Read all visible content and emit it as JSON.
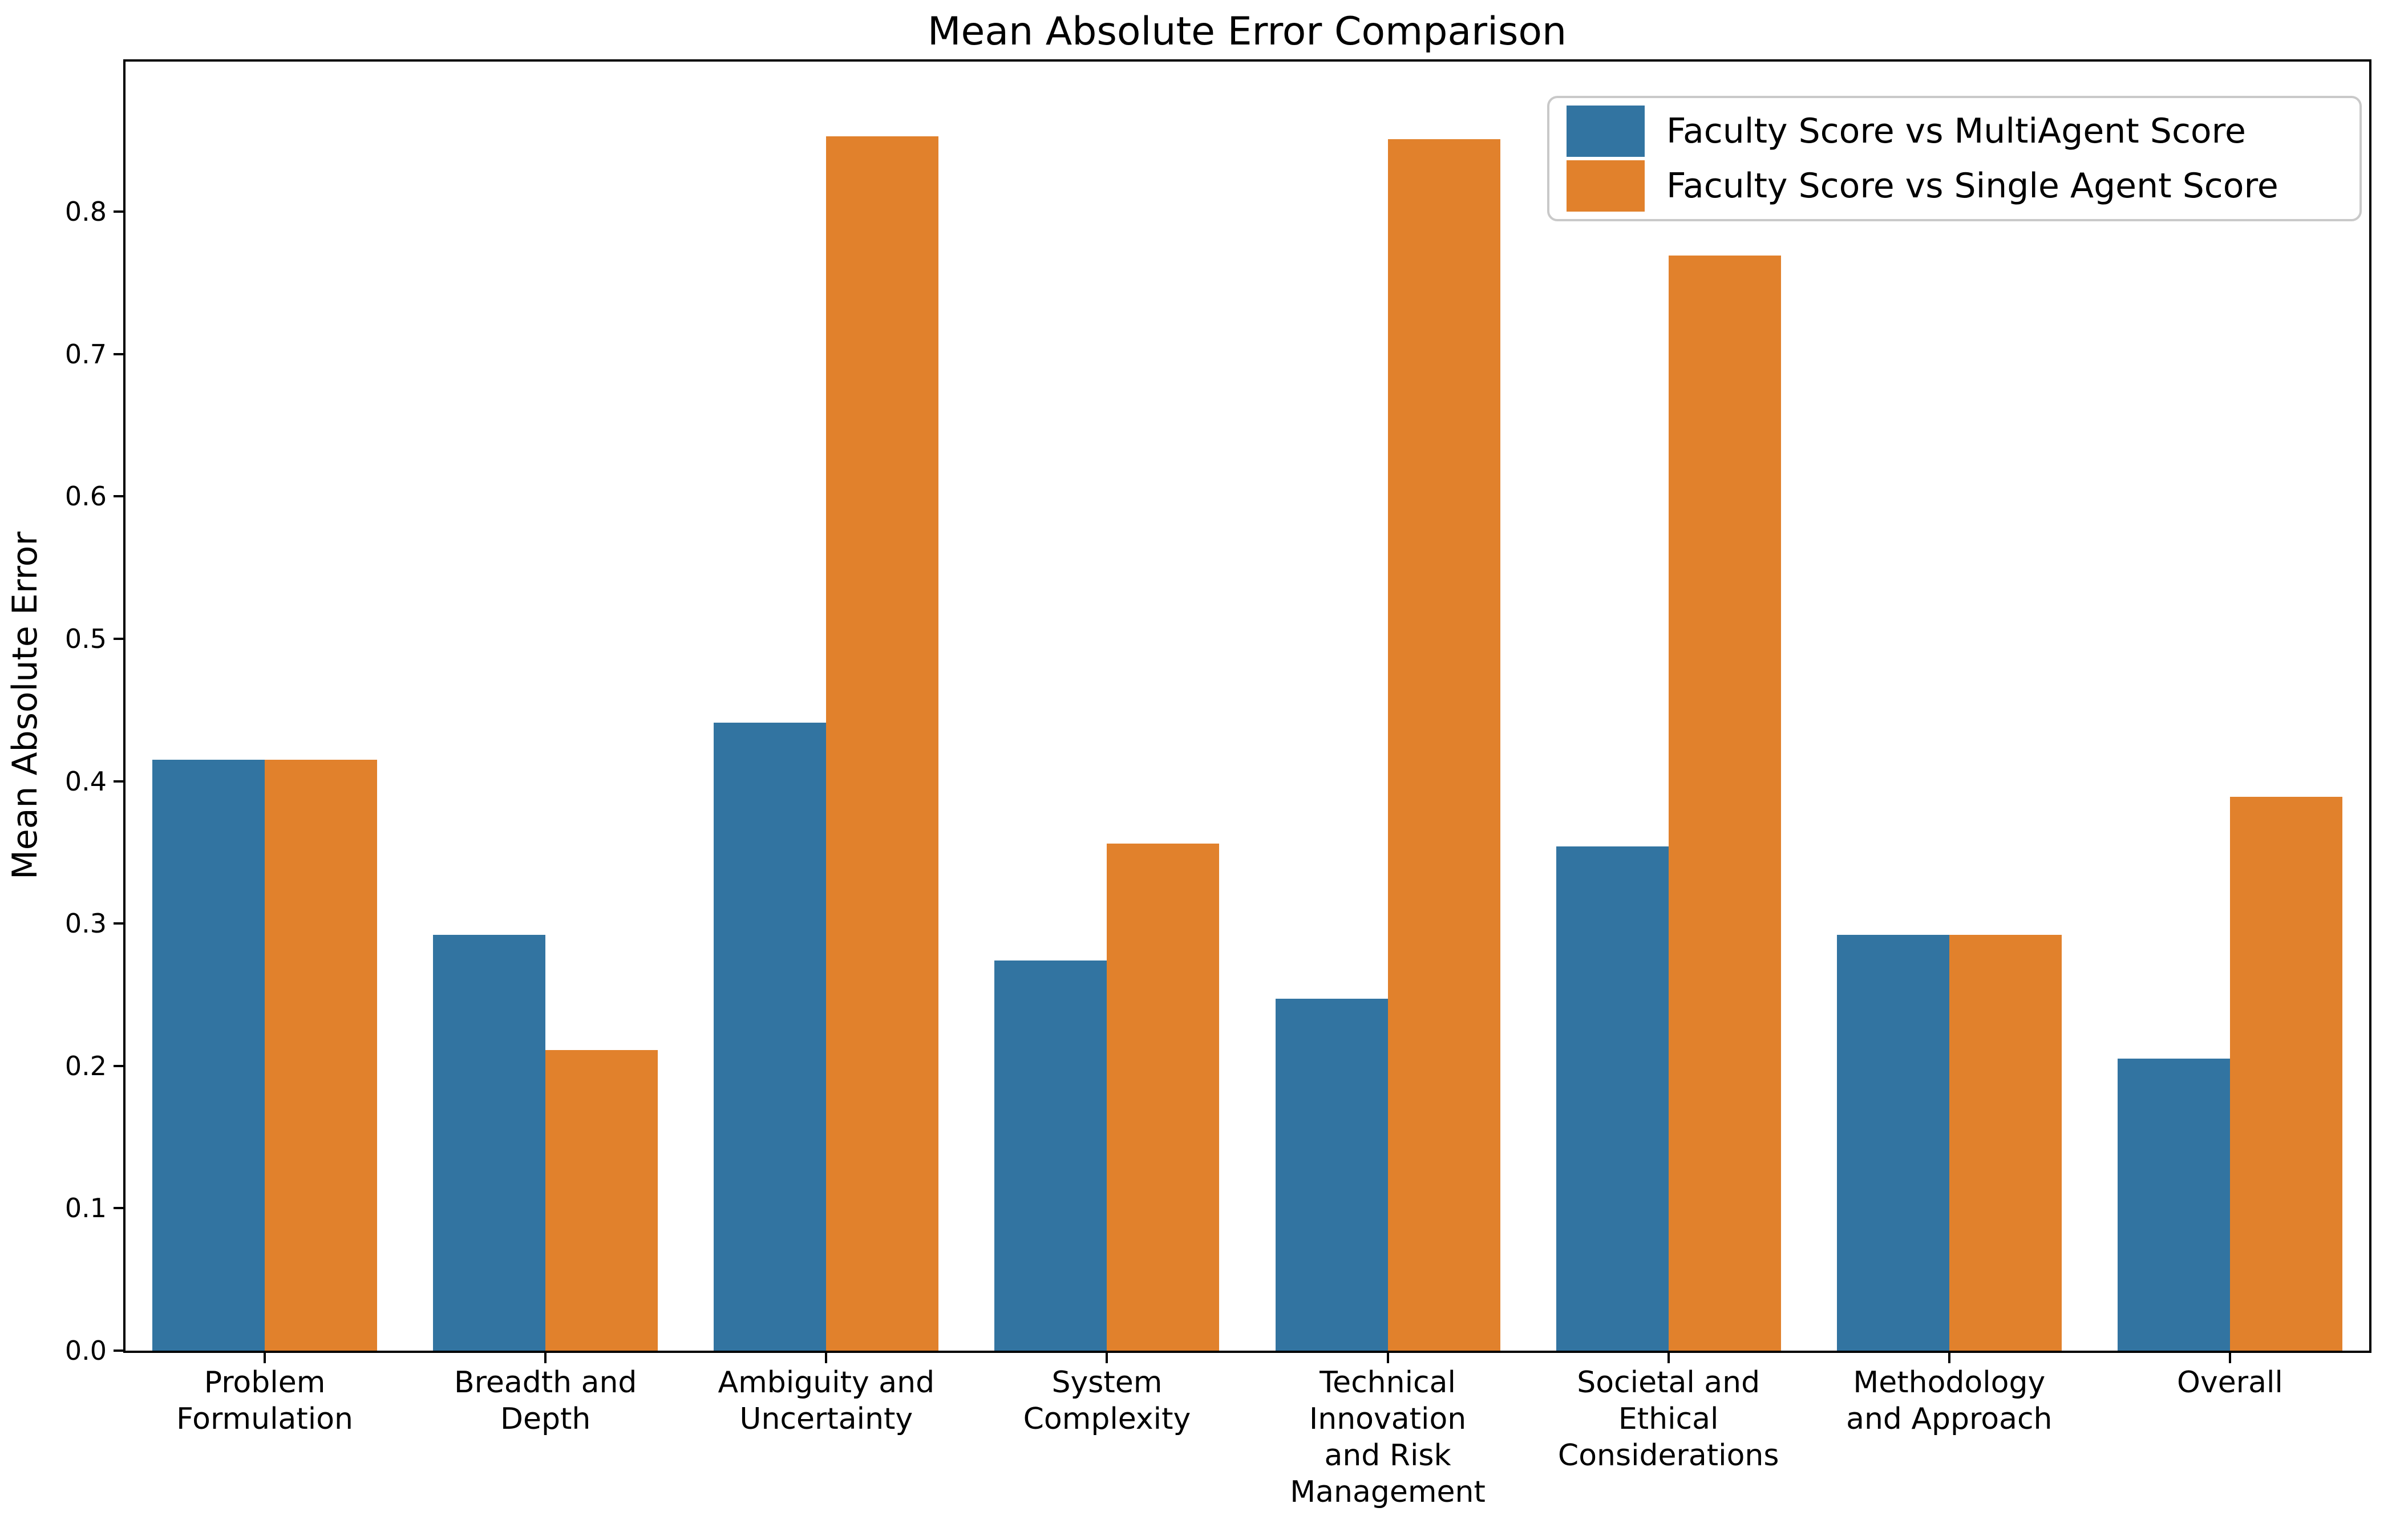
{
  "figure": {
    "title": "Mean Absolute Error Comparison"
  },
  "chart_data": {
    "type": "bar",
    "title": "Mean Absolute Error Comparison",
    "xlabel": "",
    "ylabel": "Mean Absolute Error",
    "categories": [
      "Problem\nFormulation",
      "Breadth and\nDepth",
      "Ambiguity and\nUncertainty",
      "System\nComplexity",
      "Technical\nInnovation\nand Risk\nManagement",
      "Societal and\nEthical\nConsiderations",
      "Methodology\nand Approach",
      "Overall"
    ],
    "series": [
      {
        "name": "Faculty Score vs MultiAgent Score",
        "color": "#3274A1",
        "values": [
          0.415,
          0.292,
          0.441,
          0.274,
          0.247,
          0.354,
          0.292,
          0.205
        ]
      },
      {
        "name": "Faculty Score vs Single Agent Score",
        "color": "#E1812C",
        "values": [
          0.415,
          0.211,
          0.853,
          0.356,
          0.851,
          0.769,
          0.292,
          0.389
        ]
      }
    ],
    "ylim": [
      0,
      0.907
    ],
    "yticks": [
      0.0,
      0.1,
      0.2,
      0.3,
      0.4,
      0.5,
      0.6,
      0.7,
      0.8
    ],
    "ytick_format_decimals": 1,
    "grid": false,
    "legend_position": "upper right",
    "background": "#ffffff",
    "spine_color": "#000000"
  }
}
